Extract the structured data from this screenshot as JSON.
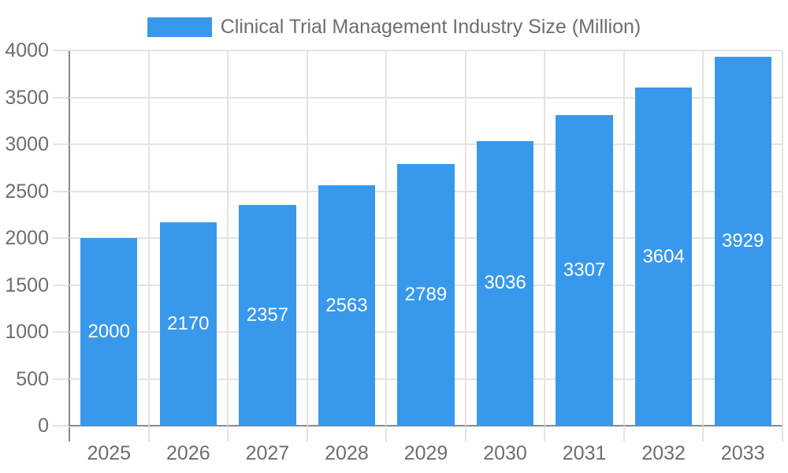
{
  "chart_data": {
    "type": "bar",
    "title": "Clinical Trial Management Industry Size (Million)",
    "categories": [
      "2025",
      "2026",
      "2027",
      "2028",
      "2029",
      "2030",
      "2031",
      "2032",
      "2033"
    ],
    "values": [
      2000,
      2170,
      2357,
      2563,
      2789,
      3036,
      3307,
      3604,
      3929
    ],
    "series_name": "Clinical Trial Management Industry Size (Million)",
    "xlabel": "",
    "ylabel": "",
    "ylim": [
      0,
      4000
    ],
    "yticks": [
      0,
      500,
      1000,
      1500,
      2000,
      2500,
      3000,
      3500,
      4000
    ],
    "grid": true,
    "legend_position": "top",
    "value_labels": "centered-inside-bars",
    "bar_fraction_of_slot": 0.72
  },
  "colors": {
    "bar": "#3899EC",
    "grid": "#E3E3E3",
    "axis": "#8A8A8A",
    "text": "#6E6E6E",
    "value_label": "#FFFFFF",
    "background": "#FFFFFF"
  }
}
